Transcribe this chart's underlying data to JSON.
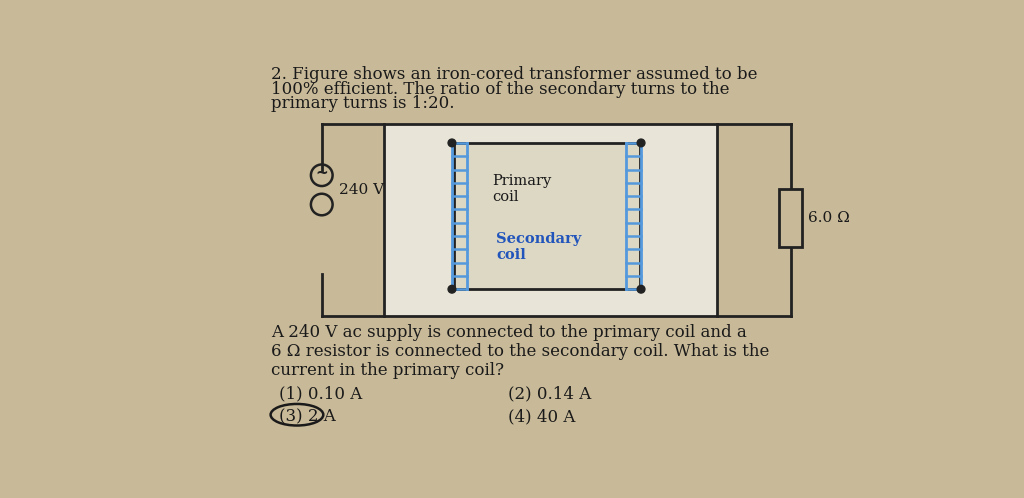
{
  "bg_color": "#c8b998",
  "text_color": "#1a1a1a",
  "title_line1": "2. Figure shows an iron-cored transformer assumed to be",
  "title_line2": "100% efficient. The ratio of the secondary turns to the",
  "title_line3": "primary turns is 1:20.",
  "body_line1": "A 240 V ac supply is connected to the primary coil and a",
  "body_line2": "6 Ω resistor is connected to the secondary coil. What is the",
  "body_line3": "current in the primary coil?",
  "option1": "(1) 0.10 A",
  "option2": "(2) 0.14 A",
  "option3": "(3) 2 A",
  "option4": "(4) 40 A",
  "label_240V": "240 V",
  "label_primary": "Primary\ncoil",
  "label_secondary": "Secondary\ncoil",
  "label_resistance": "6.0 Ω",
  "coil_color": "#5599dd",
  "line_color": "#222222",
  "box_fill": "#e8e4d8",
  "inner_fill": "#ddd8c4"
}
